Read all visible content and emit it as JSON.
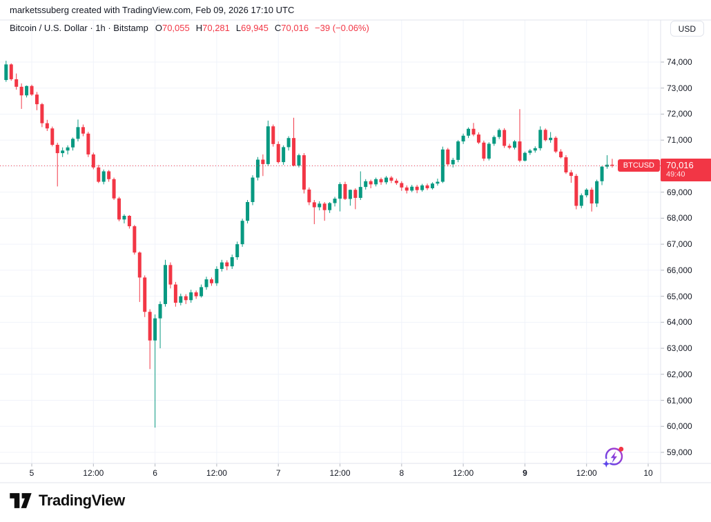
{
  "attribution": "marketssuberg created with TradingView.com, Feb 09, 2026 17:10 UTC",
  "legend": {
    "title": "Bitcoin / U.S. Dollar · 1h · Bitstamp",
    "ohlc": [
      {
        "label": "O",
        "value": "70,055"
      },
      {
        "label": "H",
        "value": "70,281"
      },
      {
        "label": "L",
        "value": "69,945"
      },
      {
        "label": "C",
        "value": "70,016"
      }
    ],
    "change": "−39 (−0.06%)"
  },
  "currency_button": "USD",
  "price_line": {
    "symbol_badge": "BTCUSD",
    "price_label": "70,016",
    "countdown": "49:40",
    "value": 70016
  },
  "footer": {
    "brand": "TradingView"
  },
  "icons": {
    "sparkle": "ai-refresh-lightning-icon",
    "logo": "tradingview-logo"
  },
  "colors": {
    "up": "#089981",
    "down": "#F23645",
    "grid": "#F0F3FA",
    "border": "#E0E3EB",
    "text": "#131722",
    "label_bg": "#F23645",
    "dotted_line": "#F23645"
  },
  "price_axis": {
    "ticks": [
      {
        "label": "74,000",
        "value": 74000
      },
      {
        "label": "73,000",
        "value": 73000
      },
      {
        "label": "72,000",
        "value": 72000
      },
      {
        "label": "71,000",
        "value": 71000
      },
      {
        "label": "70,000",
        "value": 70000
      },
      {
        "label": "69,000",
        "value": 69000
      },
      {
        "label": "68,000",
        "value": 68000
      },
      {
        "label": "67,000",
        "value": 67000
      },
      {
        "label": "66,000",
        "value": 66000
      },
      {
        "label": "65,000",
        "value": 65000
      },
      {
        "label": "64,000",
        "value": 64000
      },
      {
        "label": "63,000",
        "value": 63000
      },
      {
        "label": "62,000",
        "value": 62000
      },
      {
        "label": "61,000",
        "value": 61000
      },
      {
        "label": "60,000",
        "value": 60000
      },
      {
        "label": "59,000",
        "value": 59000
      }
    ]
  },
  "time_axis": {
    "ticks": [
      {
        "label": "5",
        "offset": 5,
        "bold": false
      },
      {
        "label": "12:00",
        "offset": 17,
        "bold": false
      },
      {
        "label": "6",
        "offset": 29,
        "bold": false
      },
      {
        "label": "12:00",
        "offset": 41,
        "bold": false
      },
      {
        "label": "7",
        "offset": 53,
        "bold": false
      },
      {
        "label": "12:00",
        "offset": 65,
        "bold": false
      },
      {
        "label": "8",
        "offset": 77,
        "bold": false
      },
      {
        "label": "12:00",
        "offset": 89,
        "bold": false
      },
      {
        "label": "9",
        "offset": 101,
        "bold": true
      },
      {
        "label": "12:00",
        "offset": 113,
        "bold": false
      },
      {
        "label": "10",
        "offset": 125,
        "bold": false
      }
    ]
  },
  "chart_data": {
    "type": "candlestick",
    "symbol": "BTCUSD",
    "exchange": "Bitstamp",
    "interval": "1h",
    "title": "Bitcoin / U.S. Dollar",
    "start_time": "Feb 4 19:00 UTC",
    "end_time": "Feb 9 17:00 UTC",
    "price_range": [
      59000,
      74000
    ],
    "last_price": 70016,
    "grid": true,
    "candles": [
      [
        73310,
        74050,
        73240,
        73910
      ],
      [
        73910,
        73950,
        73280,
        73340
      ],
      [
        73340,
        73560,
        72940,
        73050
      ],
      [
        73050,
        73180,
        72200,
        72720
      ],
      [
        72720,
        73100,
        72640,
        73080
      ],
      [
        73080,
        73130,
        72700,
        72750
      ],
      [
        72750,
        72850,
        72150,
        72380
      ],
      [
        72380,
        72430,
        71500,
        71650
      ],
      [
        71650,
        71780,
        71350,
        71450
      ],
      [
        71450,
        71520,
        70760,
        70820
      ],
      [
        70820,
        70900,
        69220,
        70500
      ],
      [
        70500,
        70720,
        70350,
        70600
      ],
      [
        70600,
        70800,
        70450,
        70720
      ],
      [
        70720,
        71100,
        70600,
        71050
      ],
      [
        71050,
        71790,
        70950,
        71500
      ],
      [
        71500,
        71600,
        71150,
        71250
      ],
      [
        71250,
        71320,
        70350,
        70450
      ],
      [
        70450,
        70520,
        69880,
        69950
      ],
      [
        69950,
        70050,
        69350,
        69400
      ],
      [
        69400,
        69870,
        69300,
        69800
      ],
      [
        69800,
        69850,
        69400,
        69500
      ],
      [
        69500,
        69560,
        68700,
        68760
      ],
      [
        68760,
        68820,
        67880,
        67950
      ],
      [
        67950,
        68150,
        67800,
        68090
      ],
      [
        68090,
        68120,
        67600,
        67690
      ],
      [
        67690,
        67740,
        66600,
        66680
      ],
      [
        66680,
        66720,
        64780,
        65720
      ],
      [
        65720,
        65800,
        64200,
        64400
      ],
      [
        64400,
        64500,
        62200,
        63300
      ],
      [
        63300,
        64300,
        59950,
        64150
      ],
      [
        64150,
        64800,
        63000,
        64700
      ],
      [
        64700,
        66400,
        64600,
        66200
      ],
      [
        66200,
        66300,
        65300,
        65450
      ],
      [
        65450,
        65550,
        64600,
        64750
      ],
      [
        64750,
        65100,
        64650,
        65000
      ],
      [
        65000,
        65080,
        64700,
        64850
      ],
      [
        64850,
        65250,
        64750,
        65150
      ],
      [
        65150,
        65220,
        64900,
        65000
      ],
      [
        65000,
        65450,
        64950,
        65350
      ],
      [
        65350,
        65750,
        65250,
        65650
      ],
      [
        65650,
        65720,
        65400,
        65500
      ],
      [
        65500,
        66150,
        65400,
        66050
      ],
      [
        66050,
        66400,
        65950,
        66300
      ],
      [
        66300,
        66380,
        66000,
        66150
      ],
      [
        66150,
        66600,
        66050,
        66500
      ],
      [
        66500,
        67100,
        66400,
        67000
      ],
      [
        67000,
        67980,
        66900,
        67900
      ],
      [
        67900,
        68700,
        67800,
        68620
      ],
      [
        68620,
        69650,
        68500,
        69560
      ],
      [
        69560,
        70350,
        69450,
        70250
      ],
      [
        70250,
        70450,
        69620,
        70080
      ],
      [
        70080,
        71750,
        70000,
        71530
      ],
      [
        71530,
        71600,
        70750,
        70850
      ],
      [
        70850,
        70950,
        70100,
        70155
      ],
      [
        70155,
        70800,
        70050,
        70730
      ],
      [
        70730,
        71150,
        70600,
        71080
      ],
      [
        71080,
        71860,
        69990,
        70020
      ],
      [
        70020,
        70480,
        69950,
        70420
      ],
      [
        70420,
        70500,
        68950,
        69100
      ],
      [
        69100,
        69180,
        68500,
        68610
      ],
      [
        68610,
        68700,
        67770,
        68420
      ],
      [
        68420,
        68650,
        68300,
        68560
      ],
      [
        68560,
        68620,
        67900,
        68310
      ],
      [
        68310,
        68620,
        68200,
        68580
      ],
      [
        68580,
        68820,
        68450,
        68750
      ],
      [
        68750,
        69380,
        68260,
        69310
      ],
      [
        69310,
        69400,
        68700,
        68740
      ],
      [
        68740,
        69100,
        68480,
        69090
      ],
      [
        69090,
        69150,
        68345,
        68780
      ],
      [
        68780,
        69800,
        68700,
        69200
      ],
      [
        69200,
        69500,
        69100,
        69420
      ],
      [
        69420,
        69480,
        69150,
        69300
      ],
      [
        69300,
        69560,
        69220,
        69500
      ],
      [
        69500,
        69560,
        69280,
        69380
      ],
      [
        69380,
        69620,
        69300,
        69560
      ],
      [
        69560,
        69620,
        69350,
        69440
      ],
      [
        69440,
        69520,
        69280,
        69350
      ],
      [
        69350,
        69420,
        69050,
        69180
      ],
      [
        69180,
        69260,
        68950,
        69060
      ],
      [
        69060,
        69280,
        69000,
        69210
      ],
      [
        69210,
        69280,
        68960,
        69080
      ],
      [
        69080,
        69320,
        69020,
        69260
      ],
      [
        69260,
        69330,
        69080,
        69150
      ],
      [
        69150,
        69380,
        69100,
        69330
      ],
      [
        69330,
        69520,
        69250,
        69400
      ],
      [
        69400,
        70750,
        69350,
        70640
      ],
      [
        70640,
        70700,
        69990,
        70070
      ],
      [
        70070,
        70320,
        69950,
        70240
      ],
      [
        70240,
        71000,
        70150,
        70950
      ],
      [
        70950,
        71250,
        70850,
        71170
      ],
      [
        71170,
        71490,
        71080,
        71435
      ],
      [
        71435,
        71660,
        71150,
        71215
      ],
      [
        71215,
        71300,
        70850,
        70905
      ],
      [
        70905,
        70980,
        70200,
        70290
      ],
      [
        70290,
        70920,
        70220,
        70860
      ],
      [
        70860,
        71180,
        70780,
        71120
      ],
      [
        71120,
        71450,
        71040,
        71390
      ],
      [
        71390,
        71460,
        70700,
        70780
      ],
      [
        70780,
        70860,
        70650,
        70710
      ],
      [
        70710,
        71000,
        70640,
        70950
      ],
      [
        70950,
        72190,
        70150,
        70210
      ],
      [
        70210,
        70560,
        70180,
        70510
      ],
      [
        70510,
        70660,
        70430,
        70600
      ],
      [
        70600,
        70760,
        70520,
        70690
      ],
      [
        70690,
        71530,
        70600,
        71395
      ],
      [
        71395,
        71450,
        70950,
        71000
      ],
      [
        71000,
        71310,
        70900,
        71090
      ],
      [
        71090,
        71150,
        70500,
        70560
      ],
      [
        70560,
        70650,
        70300,
        70340
      ],
      [
        70340,
        70420,
        69700,
        69760
      ],
      [
        69760,
        69850,
        69360,
        69625
      ],
      [
        69625,
        69700,
        68340,
        68475
      ],
      [
        68475,
        68950,
        68380,
        68880
      ],
      [
        68880,
        69150,
        68800,
        69095
      ],
      [
        69095,
        69180,
        68255,
        68565
      ],
      [
        68565,
        69480,
        68430,
        69420
      ],
      [
        69420,
        70000,
        69270,
        69980
      ],
      [
        69980,
        70420,
        69900,
        70055
      ],
      [
        70055,
        70281,
        69945,
        70016
      ]
    ]
  }
}
